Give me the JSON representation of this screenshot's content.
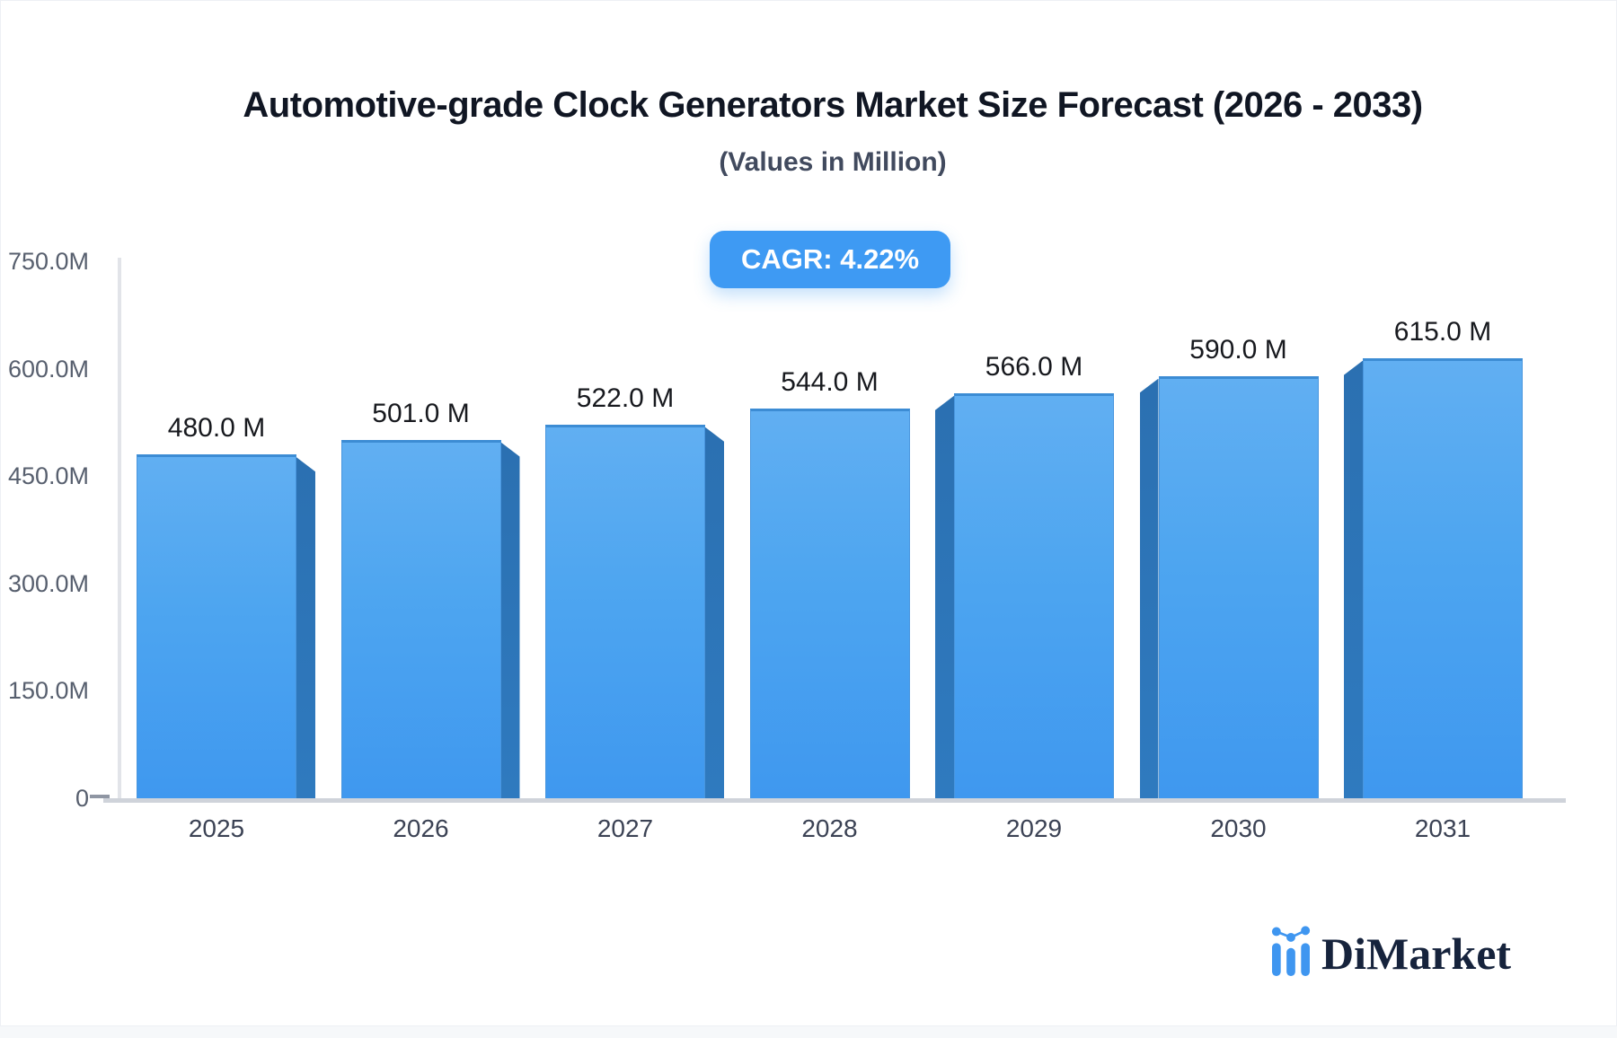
{
  "header": {
    "title": "Automotive-grade Clock Generators Market Size Forecast (2026 - 2033)",
    "subtitle": "(Values in Million)",
    "cagr_badge": "CAGR: 4.22%"
  },
  "colors": {
    "bar_face_top": "#61aff2",
    "bar_face_bottom": "#3f98ef",
    "bar_side": "#2e76b9",
    "badge_bg": "#3e9af3",
    "axis_line": "#e2e4e9",
    "baseline": "#cfd3da",
    "logo_accent": "#3f96f0",
    "logo_text_color": "#16233c"
  },
  "chart_data": {
    "type": "bar",
    "title": "Automotive-grade Clock Generators Market Size Forecast (2026 - 2033)",
    "subtitle": "(Values in Million)",
    "cagr": "4.22%",
    "unit": "Million",
    "categories": [
      "2025",
      "2026",
      "2027",
      "2028",
      "2029",
      "2030",
      "2031"
    ],
    "values": [
      480.0,
      501.0,
      522.0,
      544.0,
      566.0,
      590.0,
      615.0
    ],
    "value_labels": [
      "480.0 M",
      "501.0 M",
      "522.0 M",
      "544.0 M",
      "566.0 M",
      "590.0 M",
      "615.0 M"
    ],
    "ylim": [
      0,
      750
    ],
    "yticks": [
      0,
      150,
      300,
      450,
      600,
      750
    ],
    "ytick_labels": [
      "0",
      "150.0M",
      "300.0M",
      "450.0M",
      "600.0M",
      "750.0M"
    ],
    "grid": false,
    "legend": null,
    "bar_style": "3d",
    "xlabel": "",
    "ylabel": ""
  },
  "footer": {
    "logo_text": "DiMarket"
  }
}
